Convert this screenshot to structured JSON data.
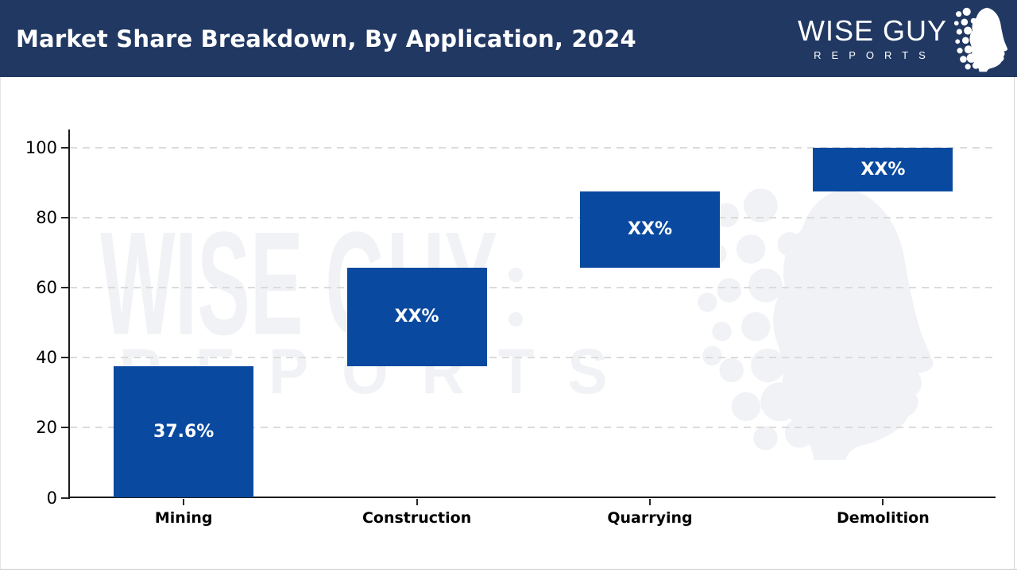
{
  "header": {
    "title": "Market Share Breakdown, By Application, 2024",
    "brand_line1": "WISE GUY",
    "brand_line2": "REPORTS",
    "brand_icon": "dotted-head-profile-icon",
    "bg_color": "#213863",
    "text_color": "#FFFFFF"
  },
  "watermark": {
    "line1": "WISE GUY",
    "line2": "REPORTS",
    "color": "#F1F2F5"
  },
  "chart_data": {
    "type": "bar",
    "variant": "floating-segment-waterfall",
    "title": "Market Share Breakdown, By Application, 2024",
    "categories": [
      "Mining",
      "Construction",
      "Quarrying",
      "Demolition"
    ],
    "segments": [
      {
        "category": "Mining",
        "start": 0,
        "end": 37.6,
        "label": "37.6%"
      },
      {
        "category": "Construction",
        "start": 37.6,
        "end": 65.7,
        "label": "XX%"
      },
      {
        "category": "Quarrying",
        "start": 65.7,
        "end": 87.5,
        "label": "XX%"
      },
      {
        "category": "Demolition",
        "start": 87.5,
        "end": 100,
        "label": "XX%"
      }
    ],
    "xlabel": "",
    "ylabel": "",
    "ylim": [
      0,
      100
    ],
    "yticks": [
      0,
      20,
      40,
      60,
      80,
      100
    ],
    "grid": "horizontal-dashed",
    "legend": "none",
    "bar_color": "#0A49A0",
    "bar_label_color": "#FFFFFF",
    "axis_color": "#1A1A1A",
    "gridline_color": "#DBDBDB"
  }
}
